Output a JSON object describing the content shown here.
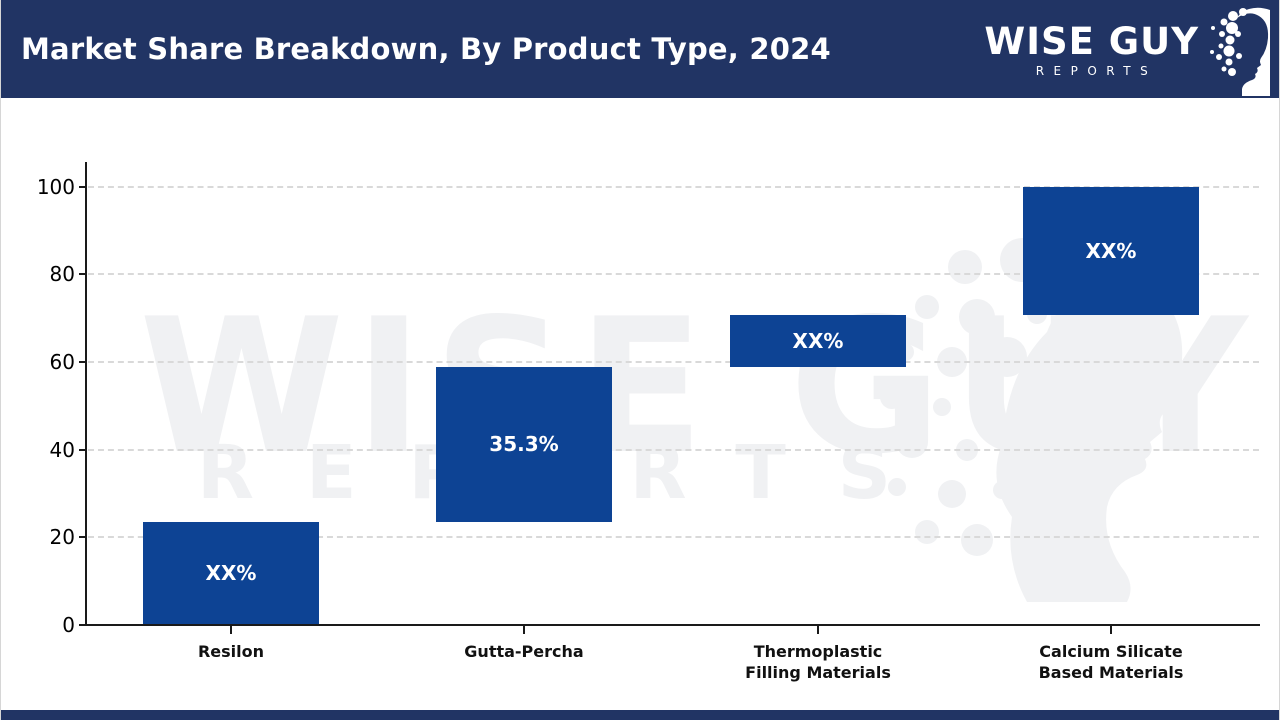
{
  "header": {
    "title": "Market Share Breakdown, By Product Type, 2024",
    "logo": {
      "line1": "WISE GUY",
      "line2": "REPORTS"
    }
  },
  "watermark": {
    "line1": "WISE GUY",
    "line2": "REPORTS"
  },
  "chart_data": {
    "type": "bar",
    "subtype": "waterfall",
    "title": "Market Share Breakdown, By Product Type, 2024",
    "xlabel": "",
    "ylabel": "",
    "ylim": [
      0,
      100
    ],
    "yticks": [
      0,
      20,
      40,
      60,
      80,
      100
    ],
    "grid": "horizontal-dashed",
    "legend": "none",
    "categories": [
      [
        "Resilon"
      ],
      [
        "Gutta-Percha"
      ],
      [
        "Thermoplastic",
        "Filling Materials"
      ],
      [
        "Calcium Silicate",
        "Based Materials"
      ]
    ],
    "series": [
      {
        "name": "Resilon",
        "start": 0,
        "end": 23.6,
        "label": "XX%"
      },
      {
        "name": "Gutta-Percha",
        "start": 23.6,
        "end": 58.9,
        "label": "35.3%"
      },
      {
        "name": "Thermoplastic Filling Materials",
        "start": 58.9,
        "end": 70.7,
        "label": "XX%"
      },
      {
        "name": "Calcium Silicate Based Materials",
        "start": 70.7,
        "end": 100,
        "label": "XX%"
      }
    ],
    "bar_color": "#0d4394",
    "bar_label_color": "#ffffff"
  },
  "colors": {
    "header_bg": "#213464",
    "footer_bg": "#213464",
    "bar": "#0d4394",
    "gridline": "#d9d9d9",
    "watermark": "#f0f1f3"
  }
}
